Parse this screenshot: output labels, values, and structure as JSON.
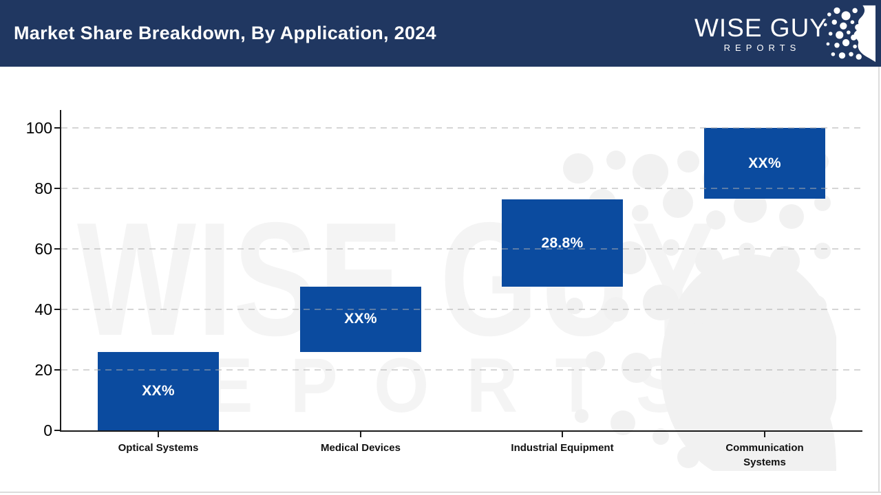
{
  "header": {
    "title": "Market Share Breakdown, By Application, 2024"
  },
  "logo": {
    "line1": "WISE GUY",
    "line2": "REPORTS"
  },
  "watermark": {
    "line1": "WISE GUY",
    "line2": "R E P O R T S"
  },
  "colors": {
    "header_bg": "#203761",
    "bar": "#0b4b9f",
    "axis": "#1a1a1a",
    "grid_dash": "#dedede",
    "watermark": "#f4f4f4",
    "bar_label_text": "#ffffff",
    "tick_text": "#000000"
  },
  "chart_data": {
    "type": "bar",
    "subtype": "floating-waterfall",
    "title": "Market Share Breakdown, By Application, 2024",
    "categories": [
      "Optical Systems",
      "Medical Devices",
      "Industrial Equipment",
      "Communication Systems"
    ],
    "series": [
      {
        "category": "Optical Systems",
        "start": 0,
        "end": 26,
        "label": "XX%"
      },
      {
        "category": "Medical Devices",
        "start": 26,
        "end": 47.5,
        "label": "XX%"
      },
      {
        "category": "Industrial Equipment",
        "start": 47.5,
        "end": 76.3,
        "label": "28.8%"
      },
      {
        "category": "Communication Systems",
        "start": 76.5,
        "end": 100,
        "label": "XX%"
      }
    ],
    "ylim": [
      0,
      100
    ],
    "yticks": [
      0,
      20,
      40,
      60,
      80,
      100
    ],
    "grid": "horizontal-dashed",
    "legend": "none",
    "xlabel": "",
    "ylabel": ""
  }
}
